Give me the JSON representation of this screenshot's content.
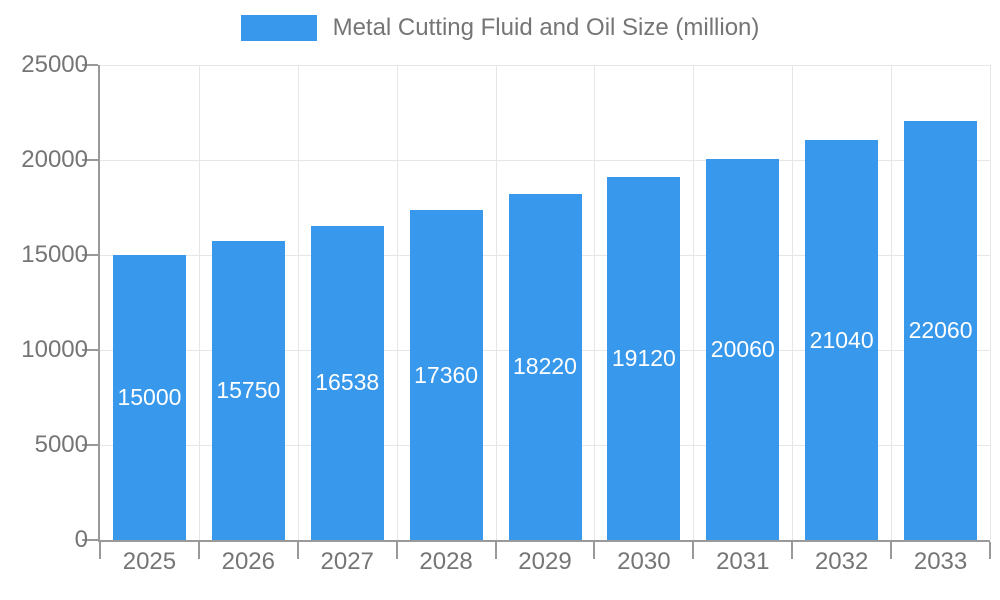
{
  "chart_data": {
    "type": "bar",
    "title": "Metal Cutting Fluid and Oil Size (million)",
    "legend": [
      "Metal Cutting Fluid and Oil Size (million)"
    ],
    "legend_position": "top-center",
    "categories": [
      "2025",
      "2026",
      "2027",
      "2028",
      "2029",
      "2030",
      "2031",
      "2032",
      "2033"
    ],
    "values": [
      15000,
      15750,
      16538,
      17360,
      18220,
      19120,
      20060,
      21040,
      22060
    ],
    "xlabel": "",
    "ylabel": "",
    "ylim": [
      0,
      25000
    ],
    "yticks": [
      0,
      5000,
      10000,
      15000,
      20000,
      25000
    ],
    "grid": true,
    "bar_labels_inside": true
  },
  "colors": {
    "bar": "#3898ec",
    "bar_label": "#ffffff",
    "axis_line": "#999999",
    "gridline": "#e6e6e6",
    "text": "#757575"
  }
}
